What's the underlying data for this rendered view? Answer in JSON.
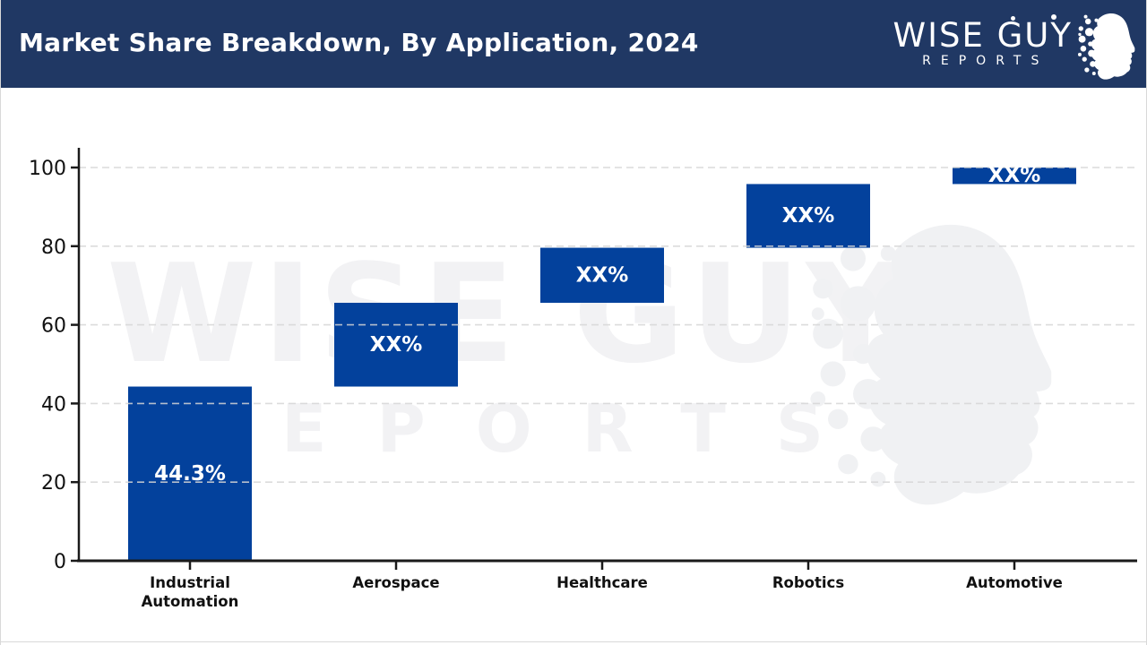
{
  "header": {
    "title": "Market Share Breakdown, By Application, 2024",
    "logo": {
      "line1": "WISE GUY",
      "line2": "REPORTS"
    }
  },
  "watermark": {
    "line1": "WISE GUY",
    "line2": "REPORTS"
  },
  "chart_data": {
    "type": "bar",
    "subtype": "waterfall",
    "title": "Market Share Breakdown, By Application, 2024",
    "categories": [
      "Industrial Automation",
      "Aerospace",
      "Healthcare",
      "Robotics",
      "Automotive"
    ],
    "segments": [
      {
        "category": "Industrial Automation",
        "label_lines": [
          "Industrial",
          "Automation"
        ],
        "start": 0,
        "end": 44.3,
        "value_label": "44.3%"
      },
      {
        "category": "Aerospace",
        "label_lines": [
          "Aerospace"
        ],
        "start": 44.3,
        "end": 65.6,
        "value_label": "XX%"
      },
      {
        "category": "Healthcare",
        "label_lines": [
          "Healthcare"
        ],
        "start": 65.6,
        "end": 79.6,
        "value_label": "XX%"
      },
      {
        "category": "Robotics",
        "label_lines": [
          "Robotics"
        ],
        "start": 79.6,
        "end": 95.8,
        "value_label": "XX%"
      },
      {
        "category": "Automotive",
        "label_lines": [
          "Automotive"
        ],
        "start": 95.8,
        "end": 100,
        "value_label": "XX%"
      }
    ],
    "y_ticks": [
      0,
      20,
      40,
      60,
      80,
      100
    ],
    "ylim": [
      0,
      105
    ],
    "xlabel": "",
    "ylabel": "",
    "grid": "horizontal-dashed",
    "legend": "none",
    "bar_color": "#03419c",
    "bar_label_color": "#ffffff"
  },
  "colors": {
    "header_bg": "#203864",
    "header_text": "#ffffff",
    "bar": "#03419c",
    "axis": "#1a1a1a",
    "gridline": "#e0e0e0",
    "watermark": "#f2f2f4"
  }
}
